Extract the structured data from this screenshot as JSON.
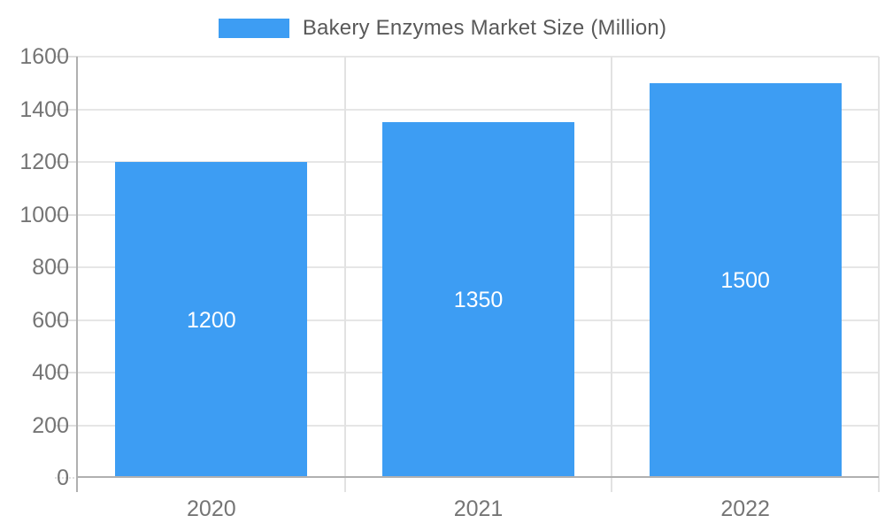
{
  "chart_data": {
    "type": "bar",
    "title": "Bakery Enzymes Market Size (Million)",
    "categories": [
      "2020",
      "2021",
      "2022"
    ],
    "series": [
      {
        "name": "Bakery Enzymes Market Size (Million)",
        "values": [
          1200,
          1350,
          1500
        ]
      }
    ],
    "bar_value_labels": [
      "1200",
      "1350",
      "1500"
    ],
    "xlabel": "",
    "ylabel": "",
    "ylim": [
      0,
      1600
    ],
    "ytick_interval": 200,
    "yticks": [
      0,
      200,
      400,
      600,
      800,
      1000,
      1200,
      1400,
      1600
    ],
    "grid": true,
    "legend_position": "top",
    "colors": {
      "bar": "#3d9df3",
      "value_label": "#ffffff",
      "axis_label": "#757575",
      "legend_text": "#595959",
      "gridline": "#e6e6e6",
      "axis_line": "#b0b0b0",
      "background": "#ffffff"
    }
  }
}
